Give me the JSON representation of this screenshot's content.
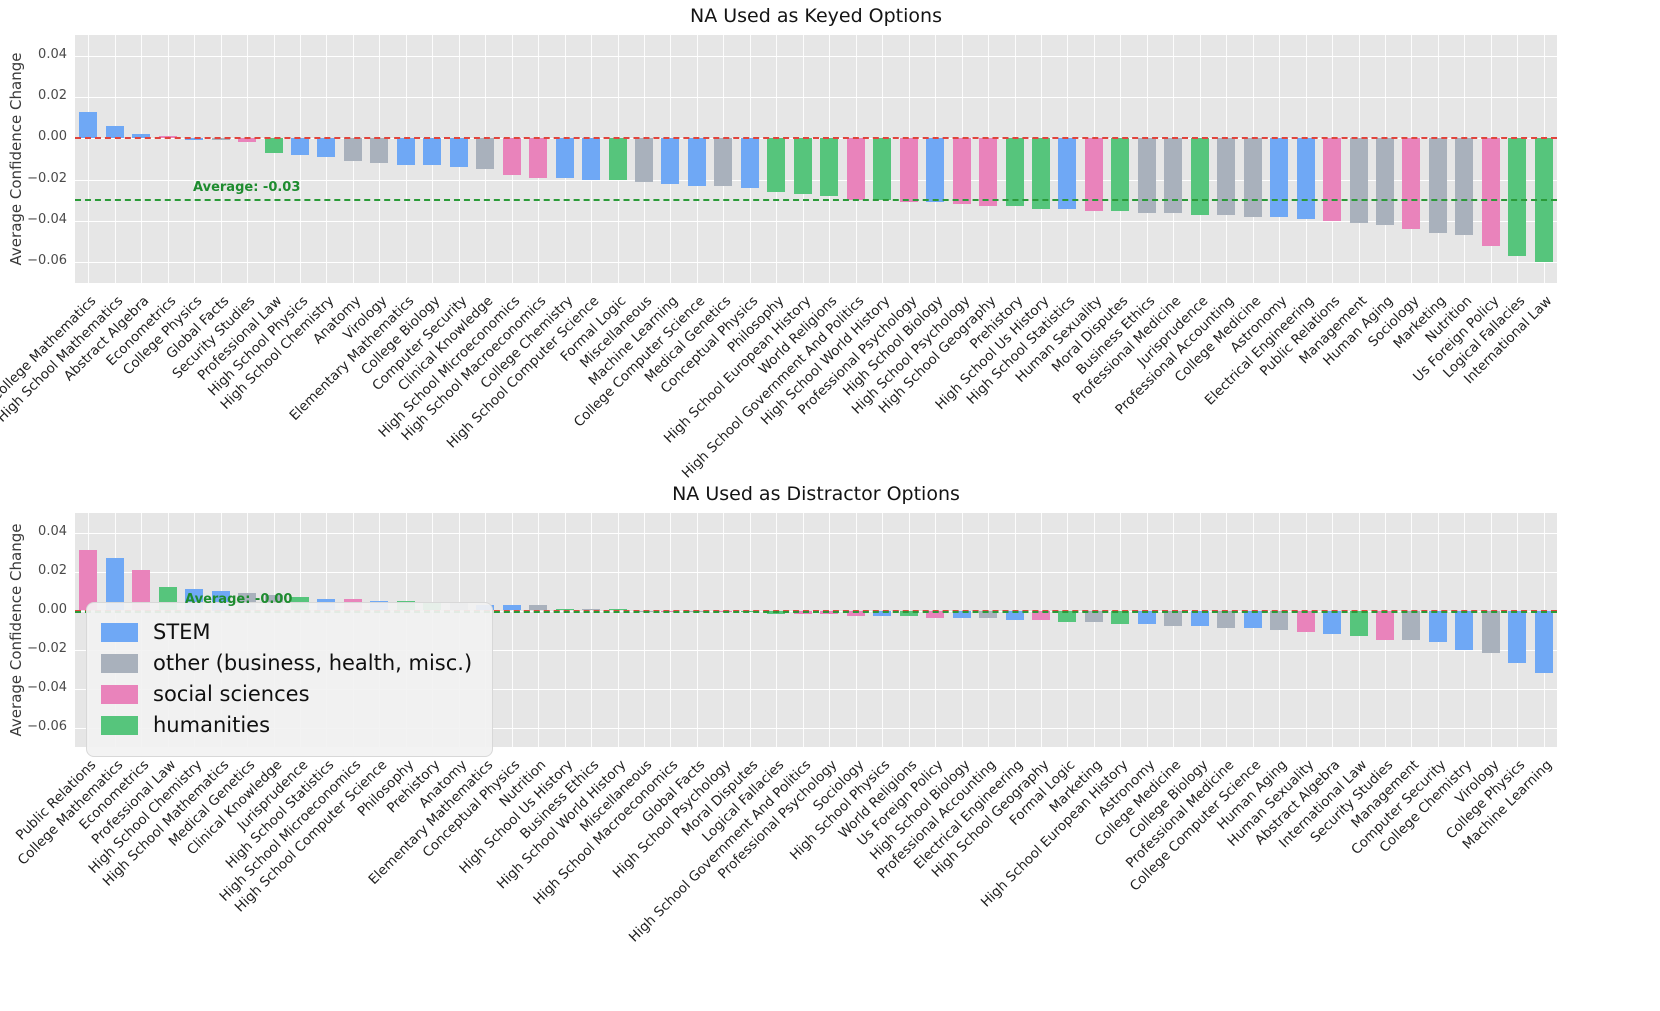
{
  "colors": {
    "plot_background": "#e6e6e6",
    "grid": "#ffffff",
    "zero_line": "#e0443c",
    "average_line": "#2a9a38",
    "average_text": "#1e8c2f"
  },
  "legend": {
    "items": [
      {
        "group": "STEM",
        "label": "STEM",
        "color": "#6fa8f5"
      },
      {
        "group": "other",
        "label": "other (business, health, misc.)",
        "color": "#a9b1bc"
      },
      {
        "group": "social",
        "label": "social sciences",
        "color": "#e983bb"
      },
      {
        "group": "humanities",
        "label": "humanities",
        "color": "#56c57c"
      }
    ]
  },
  "chart_data": [
    {
      "type": "bar",
      "title": "NA Used as Keyed Options",
      "ylabel": "Average Confidence Change",
      "ylim": [
        -0.07,
        0.05
      ],
      "yticks": [
        0.04,
        0.02,
        0.0,
        -0.02,
        -0.04,
        -0.06
      ],
      "average": -0.03,
      "average_label": "Average: -0.03",
      "grid": true,
      "bars": [
        [
          "College Mathematics",
          0.013,
          "STEM"
        ],
        [
          "High School Mathematics",
          0.006,
          "STEM"
        ],
        [
          "Abstract Algebra",
          0.002,
          "STEM"
        ],
        [
          "Econometrics",
          0.001,
          "social"
        ],
        [
          "College Physics",
          -0.001,
          "STEM"
        ],
        [
          "Global Facts",
          -0.001,
          "other"
        ],
        [
          "Security Studies",
          -0.002,
          "social"
        ],
        [
          "Professional Law",
          -0.007,
          "humanities"
        ],
        [
          "High School Physics",
          -0.008,
          "STEM"
        ],
        [
          "High School Chemistry",
          -0.009,
          "STEM"
        ],
        [
          "Anatomy",
          -0.011,
          "other"
        ],
        [
          "Virology",
          -0.012,
          "other"
        ],
        [
          "Elementary Mathematics",
          -0.013,
          "STEM"
        ],
        [
          "College Biology",
          -0.013,
          "STEM"
        ],
        [
          "Computer Security",
          -0.014,
          "STEM"
        ],
        [
          "Clinical Knowledge",
          -0.015,
          "other"
        ],
        [
          "High School Microeconomics",
          -0.018,
          "social"
        ],
        [
          "High School Macroeconomics",
          -0.019,
          "social"
        ],
        [
          "College Chemistry",
          -0.019,
          "STEM"
        ],
        [
          "High School Computer Science",
          -0.02,
          "STEM"
        ],
        [
          "Formal Logic",
          -0.02,
          "humanities"
        ],
        [
          "Miscellaneous",
          -0.021,
          "other"
        ],
        [
          "Machine Learning",
          -0.022,
          "STEM"
        ],
        [
          "College Computer Science",
          -0.023,
          "STEM"
        ],
        [
          "Medical Genetics",
          -0.023,
          "other"
        ],
        [
          "Conceptual Physics",
          -0.024,
          "STEM"
        ],
        [
          "Philosophy",
          -0.026,
          "humanities"
        ],
        [
          "High School European History",
          -0.027,
          "humanities"
        ],
        [
          "World Religions",
          -0.028,
          "humanities"
        ],
        [
          "High School Government And Politics",
          -0.03,
          "social"
        ],
        [
          "High School World History",
          -0.03,
          "humanities"
        ],
        [
          "Professional Psychology",
          -0.031,
          "social"
        ],
        [
          "High School Biology",
          -0.031,
          "STEM"
        ],
        [
          "High School Psychology",
          -0.032,
          "social"
        ],
        [
          "High School Geography",
          -0.033,
          "social"
        ],
        [
          "Prehistory",
          -0.033,
          "humanities"
        ],
        [
          "High School Us History",
          -0.034,
          "humanities"
        ],
        [
          "High School Statistics",
          -0.034,
          "STEM"
        ],
        [
          "Human Sexuality",
          -0.035,
          "social"
        ],
        [
          "Moral Disputes",
          -0.035,
          "humanities"
        ],
        [
          "Business Ethics",
          -0.036,
          "other"
        ],
        [
          "Professional Medicine",
          -0.036,
          "other"
        ],
        [
          "Jurisprudence",
          -0.037,
          "humanities"
        ],
        [
          "Professional Accounting",
          -0.037,
          "other"
        ],
        [
          "College Medicine",
          -0.038,
          "other"
        ],
        [
          "Astronomy",
          -0.038,
          "STEM"
        ],
        [
          "Electrical Engineering",
          -0.039,
          "STEM"
        ],
        [
          "Public Relations",
          -0.04,
          "social"
        ],
        [
          "Management",
          -0.041,
          "other"
        ],
        [
          "Human Aging",
          -0.042,
          "other"
        ],
        [
          "Sociology",
          -0.044,
          "social"
        ],
        [
          "Marketing",
          -0.046,
          "other"
        ],
        [
          "Nutrition",
          -0.047,
          "other"
        ],
        [
          "Us Foreign Policy",
          -0.052,
          "social"
        ],
        [
          "Logical Fallacies",
          -0.057,
          "humanities"
        ],
        [
          "International Law",
          -0.06,
          "humanities"
        ]
      ]
    },
    {
      "type": "bar",
      "title": "NA Used as Distractor Options",
      "ylabel": "Average Confidence Change",
      "ylim": [
        -0.07,
        0.05
      ],
      "yticks": [
        0.04,
        0.02,
        0.0,
        -0.02,
        -0.04,
        -0.06
      ],
      "average": -0.001,
      "average_label": "Average: -0.00",
      "grid": true,
      "bars": [
        [
          "Public Relations",
          0.031,
          "social"
        ],
        [
          "College Mathematics",
          0.027,
          "STEM"
        ],
        [
          "Econometrics",
          0.021,
          "social"
        ],
        [
          "Professional Law",
          0.012,
          "humanities"
        ],
        [
          "High School Chemistry",
          0.011,
          "STEM"
        ],
        [
          "High School Mathematics",
          0.01,
          "STEM"
        ],
        [
          "Medical Genetics",
          0.009,
          "other"
        ],
        [
          "Clinical Knowledge",
          0.008,
          "other"
        ],
        [
          "Jurisprudence",
          0.007,
          "humanities"
        ],
        [
          "High School Statistics",
          0.006,
          "STEM"
        ],
        [
          "High School Microeconomics",
          0.006,
          "social"
        ],
        [
          "High School Computer Science",
          0.005,
          "STEM"
        ],
        [
          "Philosophy",
          0.005,
          "humanities"
        ],
        [
          "Prehistory",
          0.004,
          "humanities"
        ],
        [
          "Anatomy",
          0.004,
          "other"
        ],
        [
          "Elementary Mathematics",
          0.003,
          "STEM"
        ],
        [
          "Conceptual Physics",
          0.003,
          "STEM"
        ],
        [
          "Nutrition",
          0.003,
          "other"
        ],
        [
          "High School Us History",
          0.001,
          "humanities"
        ],
        [
          "Business Ethics",
          0.001,
          "other"
        ],
        [
          "High School World History",
          0.001,
          "humanities"
        ],
        [
          "Miscellaneous",
          0.0,
          "other"
        ],
        [
          "High School Macroeconomics",
          0.0,
          "social"
        ],
        [
          "Global Facts",
          -0.001,
          "other"
        ],
        [
          "High School Psychology",
          -0.001,
          "social"
        ],
        [
          "Moral Disputes",
          -0.001,
          "humanities"
        ],
        [
          "Logical Fallacies",
          -0.002,
          "humanities"
        ],
        [
          "High School Government And Politics",
          -0.002,
          "social"
        ],
        [
          "Professional Psychology",
          -0.002,
          "social"
        ],
        [
          "Sociology",
          -0.003,
          "social"
        ],
        [
          "High School Physics",
          -0.003,
          "STEM"
        ],
        [
          "World Religions",
          -0.003,
          "humanities"
        ],
        [
          "Us Foreign Policy",
          -0.004,
          "social"
        ],
        [
          "High School Biology",
          -0.004,
          "STEM"
        ],
        [
          "Professional Accounting",
          -0.004,
          "other"
        ],
        [
          "Electrical Engineering",
          -0.005,
          "STEM"
        ],
        [
          "High School Geography",
          -0.005,
          "social"
        ],
        [
          "Formal Logic",
          -0.006,
          "humanities"
        ],
        [
          "Marketing",
          -0.006,
          "other"
        ],
        [
          "High School European History",
          -0.007,
          "humanities"
        ],
        [
          "Astronomy",
          -0.007,
          "STEM"
        ],
        [
          "College Medicine",
          -0.008,
          "other"
        ],
        [
          "College Biology",
          -0.008,
          "STEM"
        ],
        [
          "Professional Medicine",
          -0.009,
          "other"
        ],
        [
          "College Computer Science",
          -0.009,
          "STEM"
        ],
        [
          "Human Aging",
          -0.01,
          "other"
        ],
        [
          "Human Sexuality",
          -0.011,
          "social"
        ],
        [
          "Abstract Algebra",
          -0.012,
          "STEM"
        ],
        [
          "International Law",
          -0.013,
          "humanities"
        ],
        [
          "Security Studies",
          -0.015,
          "social"
        ],
        [
          "Management",
          -0.015,
          "other"
        ],
        [
          "Computer Security",
          -0.016,
          "STEM"
        ],
        [
          "College Chemistry",
          -0.02,
          "STEM"
        ],
        [
          "Virology",
          -0.022,
          "other"
        ],
        [
          "College Physics",
          -0.027,
          "STEM"
        ],
        [
          "Machine Learning",
          -0.032,
          "STEM"
        ]
      ]
    }
  ]
}
